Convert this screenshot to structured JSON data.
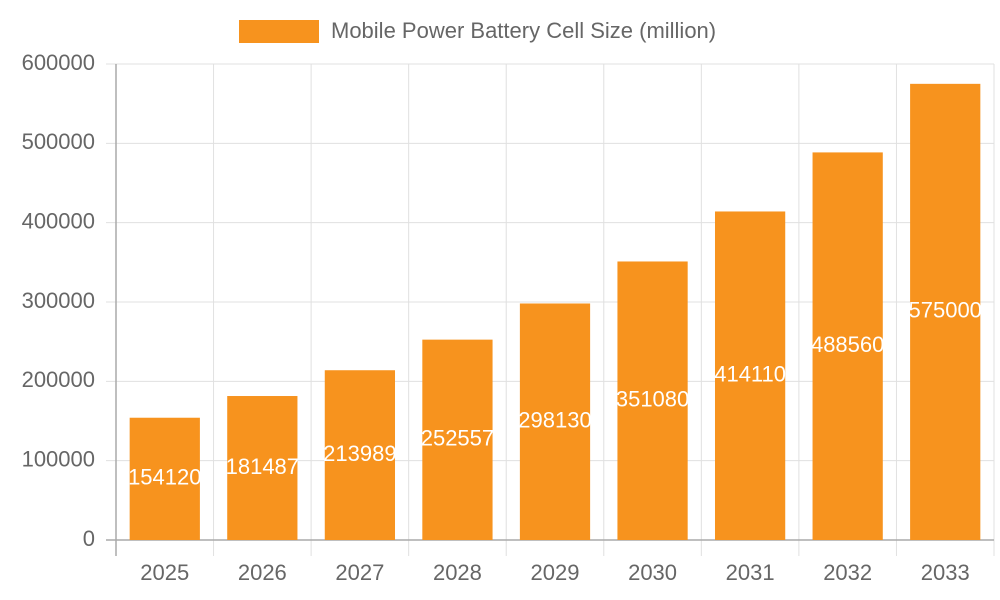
{
  "chart_data": {
    "type": "bar",
    "categories": [
      "2025",
      "2026",
      "2027",
      "2028",
      "2029",
      "2030",
      "2031",
      "2032",
      "2033"
    ],
    "series": [
      {
        "name": "Mobile Power Battery Cell Size (million)",
        "color": "#f7931e",
        "values": [
          154120,
          181487,
          213989,
          252557,
          298130,
          351080,
          414110,
          488560,
          575000
        ]
      }
    ],
    "ylim": [
      0,
      600000
    ],
    "yticks": [
      0,
      100000,
      200000,
      300000,
      400000,
      500000,
      600000
    ],
    "grid": true,
    "legend": "top",
    "data_labels": true
  }
}
